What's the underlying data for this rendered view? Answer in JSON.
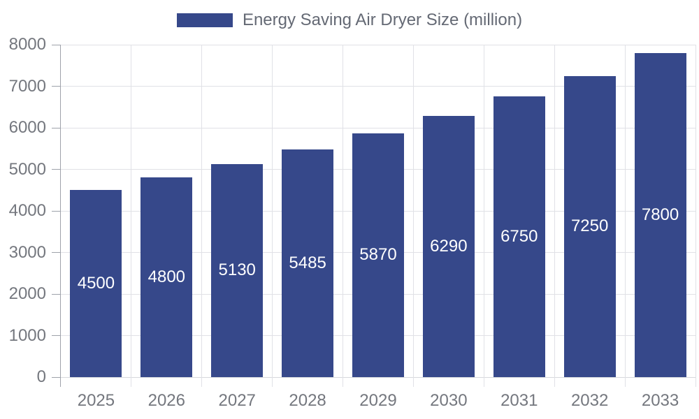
{
  "colors": {
    "bar": "#36488a",
    "grid": "#e0e1e6",
    "axis_line": "#9ea2aa",
    "axis_text": "#74777e",
    "legend_text": "#646974",
    "value_label": "#ffffff",
    "background": "#ffffff"
  },
  "chart_data": {
    "type": "bar",
    "title": "Energy Saving Air Dryer Size (million)",
    "categories": [
      "2025",
      "2026",
      "2027",
      "2028",
      "2029",
      "2030",
      "2031",
      "2032",
      "2033"
    ],
    "values": [
      4500,
      4800,
      5130,
      5485,
      5870,
      6290,
      6750,
      7250,
      7800
    ],
    "xlabel": "",
    "ylabel": "",
    "ylim": [
      0,
      8000
    ],
    "ytick_step": 1000,
    "yticks": [
      0,
      1000,
      2000,
      3000,
      4000,
      5000,
      6000,
      7000,
      8000
    ],
    "grid": true,
    "legend_position": "top-center",
    "value_labels": "inside-middle"
  }
}
